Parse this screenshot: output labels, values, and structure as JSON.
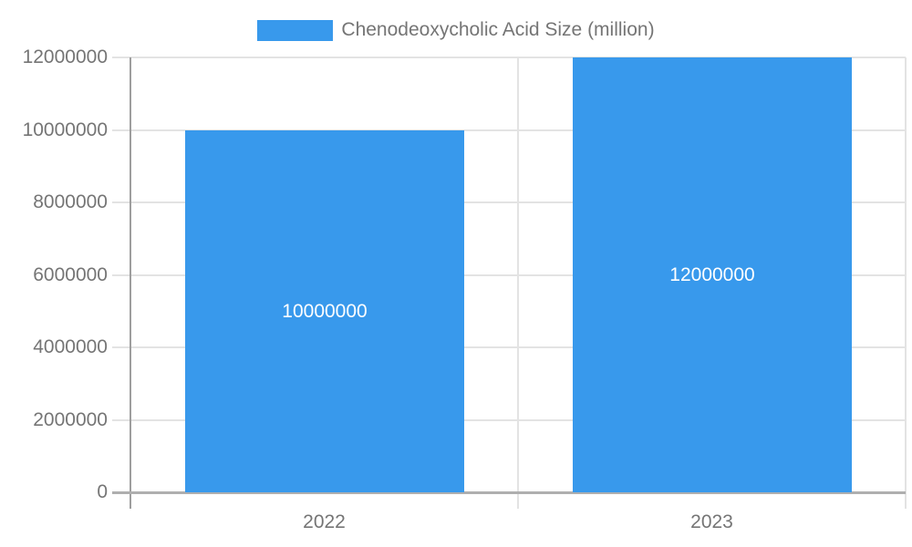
{
  "legend": {
    "label": "Chenodeoxycholic Acid Size (million)"
  },
  "chart_data": {
    "type": "bar",
    "title": "",
    "categories": [
      "2022",
      "2023"
    ],
    "series": [
      {
        "name": "Chenodeoxycholic Acid Size (million)",
        "values": [
          10000000,
          12000000
        ]
      }
    ],
    "bar_labels": [
      "10000000",
      "12000000"
    ],
    "yticks": [
      "0",
      "2000000",
      "4000000",
      "6000000",
      "8000000",
      "10000000",
      "12000000"
    ],
    "ylim": [
      0,
      12000000
    ],
    "xlabel": "",
    "ylabel": "",
    "grid": true,
    "legend_position": "top",
    "colors": {
      "bar": "#3899EC",
      "grid": "#E3E3E3",
      "axis_line": "#9E9E9E",
      "baseline": "#AFAFAF",
      "tick_text": "#757575",
      "bar_label_text": "#FFFFFF",
      "background": "#FFFFFF"
    }
  }
}
